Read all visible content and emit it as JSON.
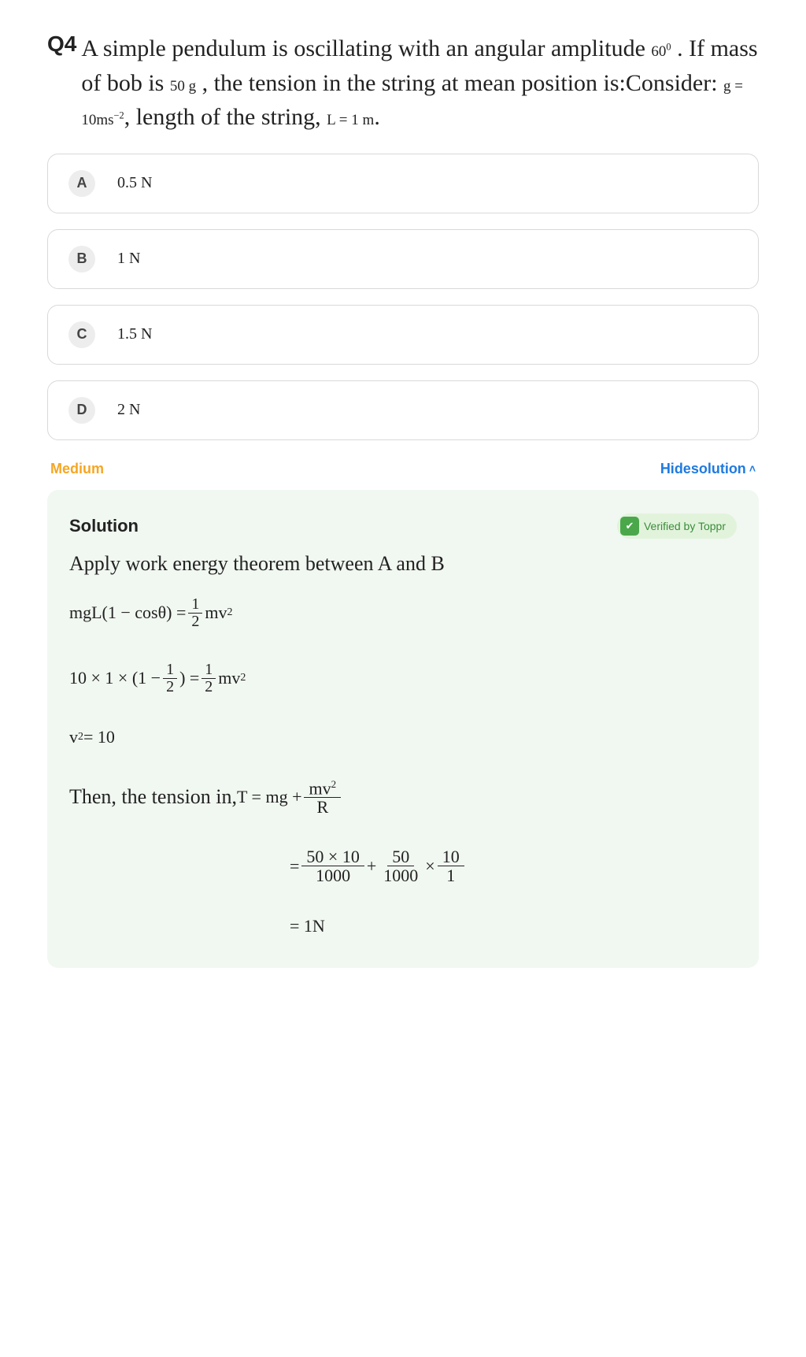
{
  "question": {
    "label": "Q4",
    "part1": "A simple pendulum is oscillating with an angular amplitude ",
    "amp": "60",
    "ampDeg": "0",
    "part2": " . If mass of bob is ",
    "mass": "50 g",
    "part3": " , the tension in the string at mean position is:Consider: ",
    "g": "g = 10ms",
    "gExp": "−2",
    "part4": ", length of the string, ",
    "L": "L = 1 m",
    "part5": "."
  },
  "options": [
    {
      "letter": "A",
      "text": "0.5 N"
    },
    {
      "letter": "B",
      "text": "1 N"
    },
    {
      "letter": "C",
      "text": "1.5 N"
    },
    {
      "letter": "D",
      "text": "2 N"
    }
  ],
  "difficulty": "Medium",
  "hideSolution": "Hidesolution",
  "solution": {
    "title": "Solution",
    "verified": "Verified by Toppr",
    "intro": "Apply work energy theorem between A and B",
    "eq1_left": "mgL(1 − cosθ) = ",
    "eq1_frac_num": "1",
    "eq1_frac_den": "2",
    "eq1_right": "mv",
    "eq1_exp": "2",
    "eq2_a": "10 × 1 × (1 − ",
    "eq2_f1n": "1",
    "eq2_f1d": "2",
    "eq2_b": ") = ",
    "eq2_f2n": "1",
    "eq2_f2d": "2",
    "eq2_c": "mv",
    "eq2_exp": "2",
    "eq3": "v",
    "eq3_exp": "2",
    "eq3_rest": " = 10",
    "eq4_a": "Then, the tension in, ",
    "eq4_b": "T = mg + ",
    "eq4_fn": "mv",
    "eq4_fn_exp": "2",
    "eq4_fd": "R",
    "eq5_eq": "= ",
    "eq5_f1n": "50 × 10",
    "eq5_f1d": "1000",
    "eq5_plus": " + ",
    "eq5_f2n": "50",
    "eq5_f2d": "1000",
    "eq5_times": " × ",
    "eq5_f3n": "10",
    "eq5_f3d": "1",
    "eq6": "= 1N"
  }
}
